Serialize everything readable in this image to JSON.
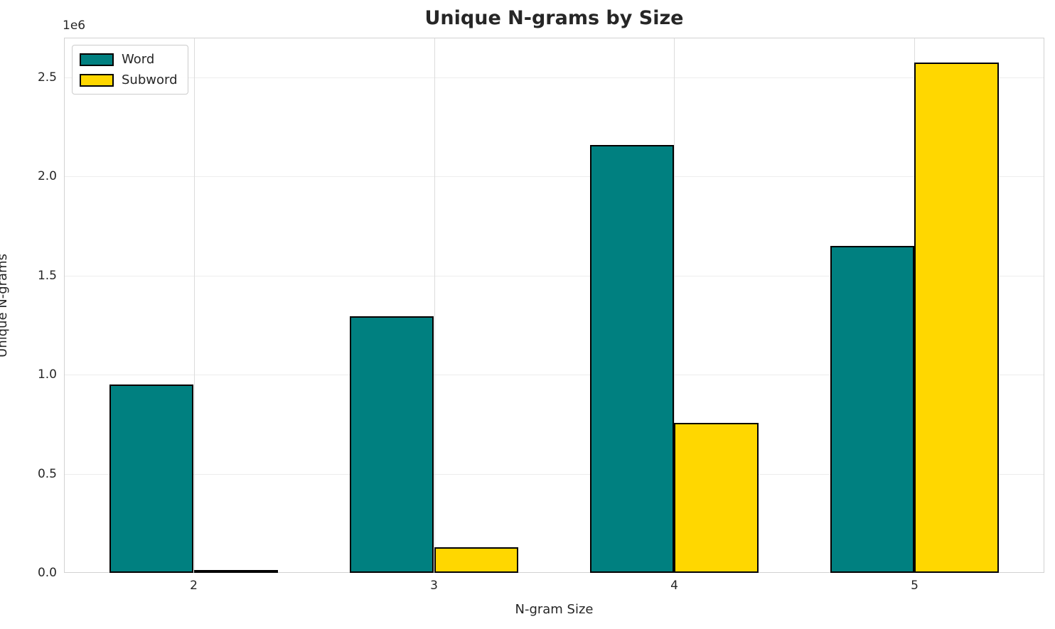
{
  "chart_data": {
    "type": "bar",
    "title": "Unique N-grams by Size",
    "xlabel": "N-gram Size",
    "ylabel": "Unique N-grams",
    "y_offset_label": "1e6",
    "categories": [
      "2",
      "3",
      "4",
      "5"
    ],
    "series": [
      {
        "name": "Word",
        "color": "#008080",
        "values": [
          950000,
          1295000,
          2160000,
          1650000
        ]
      },
      {
        "name": "Subword",
        "color": "#ffd700",
        "values": [
          15000,
          130000,
          755000,
          2575000
        ]
      }
    ],
    "yticks": [
      0,
      500000,
      1000000,
      1500000,
      2000000,
      2500000
    ],
    "ytick_labels": [
      "0.0",
      "0.5",
      "1.0",
      "1.5",
      "2.0",
      "2.5"
    ],
    "ylim": [
      0,
      2700000
    ],
    "xlim": [
      -0.54,
      3.54
    ],
    "bar_width_data_units": 0.35,
    "bar_edge_color": "#000000",
    "grid": true,
    "legend_position": "upper left",
    "colors": {
      "text": "#262626",
      "spine": "#d2d2d2",
      "hgrid": "#ededed",
      "vgrid": "#dcdcdc",
      "background": "#ffffff"
    }
  },
  "legend": {
    "items": [
      {
        "label": "Word",
        "color": "#008080"
      },
      {
        "label": "Subword",
        "color": "#ffd700"
      }
    ]
  }
}
